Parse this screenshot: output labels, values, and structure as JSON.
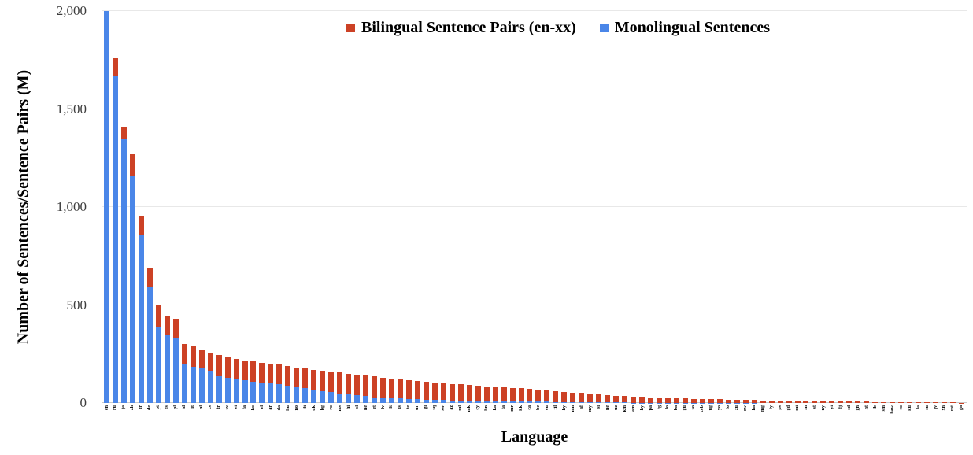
{
  "chart_data": {
    "type": "bar",
    "stacked": true,
    "title": "",
    "xlabel": "Language",
    "ylabel": "Number of Sentences/Sentence Pairs (M)",
    "ylim": [
      0,
      2000
    ],
    "yticks": [
      0,
      500,
      1000,
      1500,
      2000
    ],
    "ytick_labels": [
      "0",
      "500",
      "1,000",
      "1,500",
      "2,000"
    ],
    "grid": true,
    "legend_position": "top",
    "categories": [
      "en",
      "ru",
      "ja",
      "zh",
      "fr",
      "de",
      "pt",
      "es",
      "pl",
      "id",
      "it",
      "nl",
      "cs",
      "tr",
      "sv",
      "vi",
      "fa",
      "ko",
      "el",
      "ar",
      "da",
      "hu",
      "no",
      "fi",
      "uk",
      "bg",
      "ro",
      "ms",
      "hi",
      "sl",
      "he",
      "et",
      "lv",
      "lt",
      "is",
      "te",
      "ur",
      "gl",
      "sq",
      "sw",
      "az",
      "ml",
      "mk",
      "cy",
      "bn",
      "ka",
      "ta",
      "mr",
      "kk",
      "ca",
      "be",
      "eu",
      "fil",
      "hy",
      "mn",
      "af",
      "my",
      "si",
      "ne",
      "uz",
      "km",
      "am",
      "ky",
      "pa",
      "tg",
      "lo",
      "ba",
      "gu",
      "so",
      "ceb",
      "ug",
      "yo",
      "fo",
      "zu",
      "rw",
      "ha",
      "mg",
      "fy",
      "ps",
      "gd",
      "mi",
      "sn",
      "st",
      "ny",
      "yi",
      "fj",
      "sd",
      "gn",
      "ht",
      "lb",
      "sm",
      "haw",
      "co",
      "ku",
      "la",
      "su",
      "jv",
      "xh",
      "mt",
      "ga"
    ],
    "series": [
      {
        "name": "Bilingual Sentence Pairs (en-xx)",
        "color": "#cc4125",
        "stack": "top",
        "values": [
          0,
          90,
          60,
          110,
          90,
          100,
          110,
          90,
          100,
          105,
          105,
          100,
          90,
          110,
          107,
          105,
          103,
          102,
          101,
          100,
          100,
          100,
          97,
          100,
          102,
          105,
          105,
          105,
          105,
          105,
          105,
          105,
          102,
          100,
          98,
          96,
          94,
          92,
          90,
          87,
          84,
          82,
          80,
          78,
          76,
          73,
          71,
          69,
          68,
          66,
          62,
          58,
          55,
          52,
          49,
          46,
          43,
          40,
          38,
          35,
          33,
          31,
          29,
          27,
          25,
          24,
          23,
          22,
          21,
          20,
          19,
          18,
          17,
          16,
          15,
          14,
          14,
          13,
          12,
          12,
          11,
          10,
          10,
          9,
          9,
          8,
          8,
          7,
          7,
          6,
          6,
          5,
          5,
          4,
          4,
          4,
          3,
          3,
          3,
          2
        ]
      },
      {
        "name": "Monolingual Sentences",
        "color": "#4a86e8",
        "stack": "bottom",
        "values": [
          2000,
          1670,
          1350,
          1160,
          860,
          590,
          390,
          350,
          330,
          195,
          185,
          175,
          165,
          135,
          128,
          120,
          115,
          110,
          105,
          100,
          95,
          90,
          85,
          76,
          68,
          60,
          55,
          50,
          45,
          40,
          35,
          30,
          28,
          26,
          24,
          22,
          20,
          18,
          16,
          15,
          14,
          13,
          12,
          11,
          10,
          10,
          9,
          9,
          8,
          8,
          7,
          7,
          6,
          6,
          5,
          5,
          4,
          4,
          3,
          3,
          3,
          2,
          2,
          2,
          2,
          1,
          1,
          1,
          1,
          1,
          1,
          1,
          1,
          1,
          1,
          1,
          0,
          0,
          0,
          0,
          0,
          0,
          0,
          0,
          0,
          0,
          0,
          0,
          0,
          0,
          0,
          0,
          0,
          0,
          0,
          0,
          0,
          0,
          0,
          0
        ]
      }
    ]
  }
}
